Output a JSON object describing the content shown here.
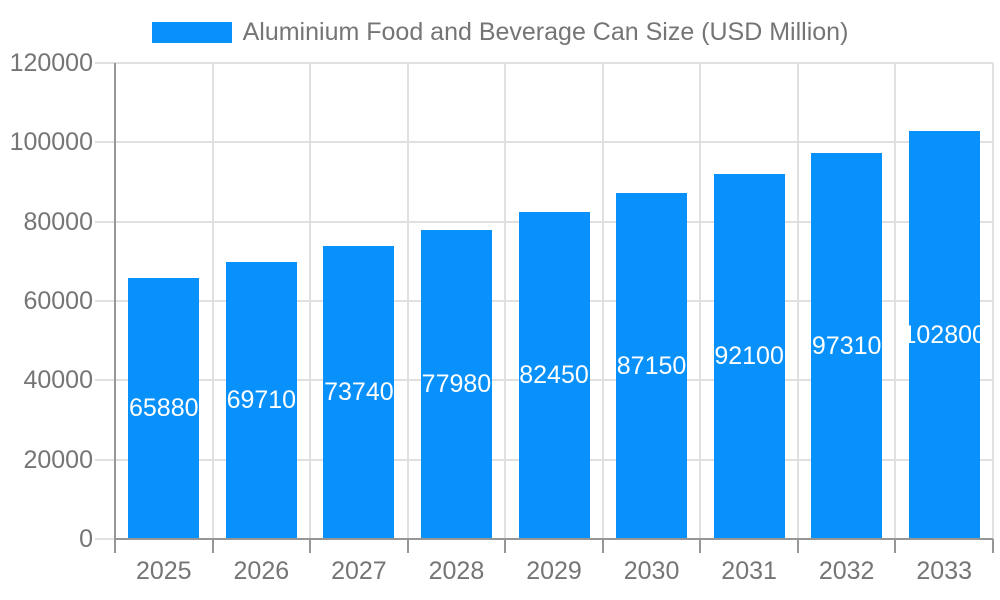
{
  "chart_data": {
    "type": "bar",
    "title": "Aluminium Food and Beverage Can Size (USD Million)",
    "categories": [
      "2025",
      "2026",
      "2027",
      "2028",
      "2029",
      "2030",
      "2031",
      "2032",
      "2033"
    ],
    "values": [
      65880,
      69710,
      73740,
      77980,
      82450,
      87150,
      92100,
      97310,
      102800
    ],
    "bar_labels": [
      "65880",
      "69710",
      "73740",
      "77980",
      "82450",
      "87150",
      "92100",
      "97310",
      "102800"
    ],
    "xlabel": "",
    "ylabel": "",
    "ylim": [
      0,
      120000
    ],
    "ytick_labels": [
      "0",
      "20000",
      "40000",
      "60000",
      "80000",
      "100000",
      "120000"
    ],
    "grid": true,
    "legend_position": "top-center",
    "bar_label_position": "inside-center",
    "colors": {
      "bar": "#0890fb",
      "bar_label_text": "#ffffff",
      "axis_text": "#757575",
      "title_text": "#757575",
      "axis_line": "#969696",
      "gridline": "#e0e0e0",
      "background": "#ffffff"
    }
  }
}
